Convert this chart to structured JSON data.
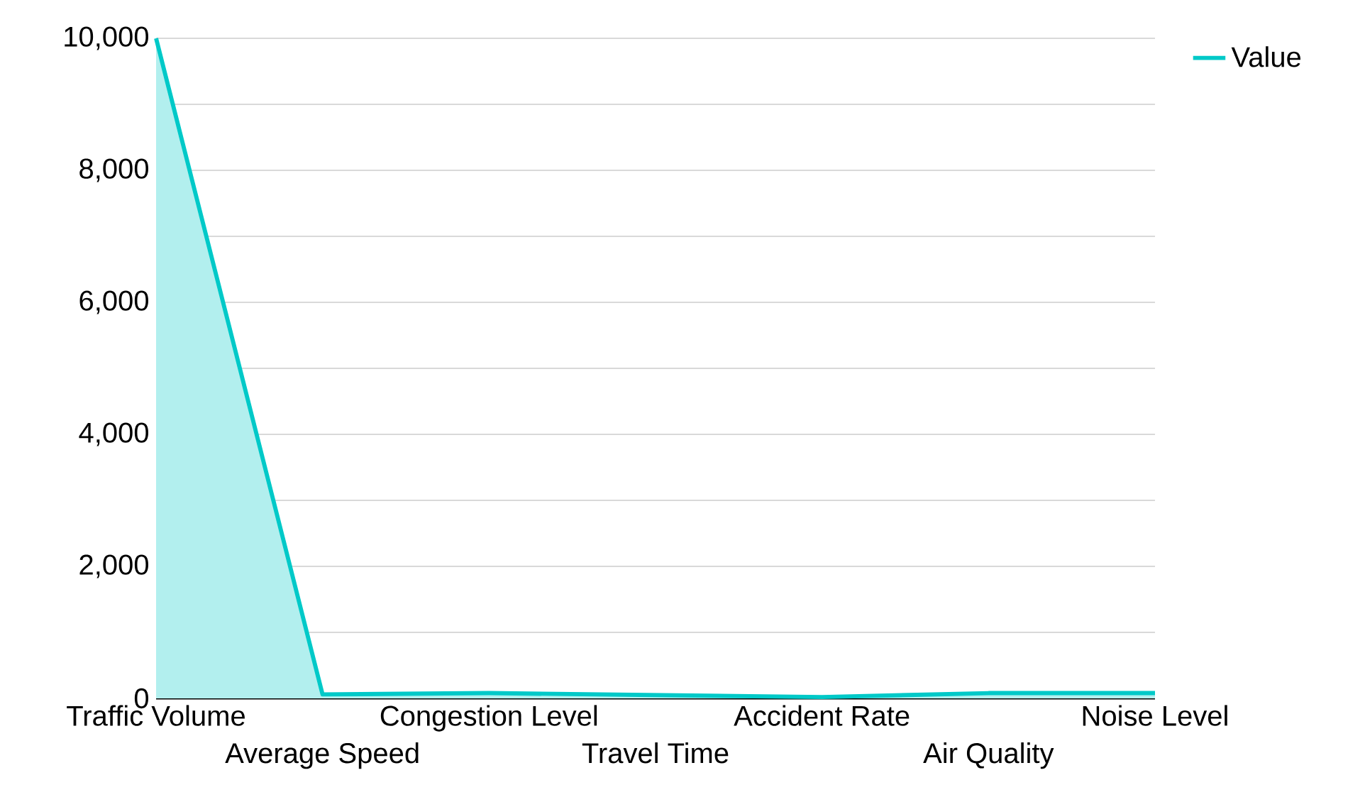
{
  "chart_data": {
    "type": "area",
    "categories": [
      "Traffic Volume",
      "Average Speed",
      "Congestion Level",
      "Travel Time",
      "Accident Rate",
      "Air Quality",
      "Noise Level"
    ],
    "series": [
      {
        "name": "Value",
        "color": "#00c9c8",
        "values": [
          10000,
          60,
          80,
          50,
          20,
          80,
          80
        ]
      }
    ],
    "ylim": [
      0,
      10000
    ],
    "yticks": [
      0,
      {
        "value": 1000,
        "label": null
      },
      {
        "value": 2000,
        "label": "2,000"
      },
      {
        "value": 3000,
        "label": null
      },
      {
        "value": 4000,
        "label": "4,000"
      },
      {
        "value": 5000,
        "label": null
      },
      {
        "value": 6000,
        "label": "6,000"
      },
      {
        "value": 7000,
        "label": null
      },
      {
        "value": 8000,
        "label": "8,000"
      },
      {
        "value": 9000,
        "label": null
      },
      {
        "value": 10000,
        "label": "10,000"
      }
    ],
    "grid": "y",
    "legend": "top right"
  }
}
